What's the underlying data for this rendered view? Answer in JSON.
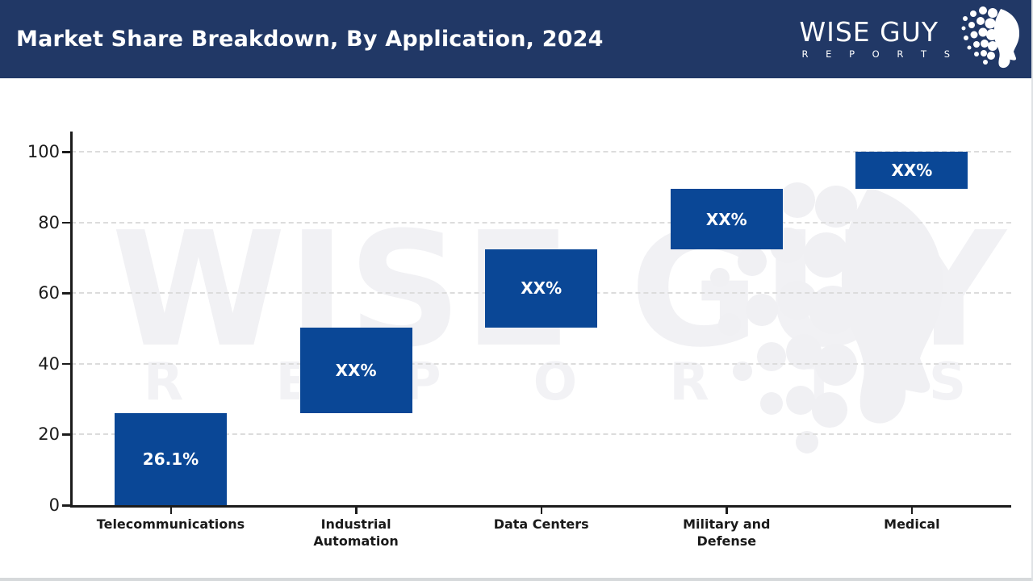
{
  "header": {
    "title": "Market Share Breakdown, By Application, 2024",
    "logo": {
      "line1": "WISE GUY",
      "line2": "R E P O R T S"
    }
  },
  "watermark": {
    "line1": "WISE GUY",
    "line2": "R E P O R T S"
  },
  "chart_data": {
    "type": "bar",
    "subtype": "waterfall",
    "title": "Market Share Breakdown, By Application, 2024",
    "categories": [
      "Telecommunications",
      "Industrial Automation",
      "Data Centers",
      "Military and Defense",
      "Medical"
    ],
    "category_label_lines": [
      [
        "Telecommunications"
      ],
      [
        "Industrial",
        "Automation"
      ],
      [
        "Data Centers"
      ],
      [
        "Military and",
        "Defense"
      ],
      [
        "Medical"
      ]
    ],
    "segments": [
      {
        "category": "Telecommunications",
        "start": 0,
        "end": 26.1,
        "label": "26.1%"
      },
      {
        "category": "Industrial Automation",
        "start": 26.1,
        "end": 50.3,
        "label": "XX%"
      },
      {
        "category": "Data Centers",
        "start": 50.3,
        "end": 72.3,
        "label": "XX%"
      },
      {
        "category": "Military and Defense",
        "start": 72.3,
        "end": 89.5,
        "label": "XX%"
      },
      {
        "category": "Medical",
        "start": 89.5,
        "end": 100,
        "label": "XX%"
      }
    ],
    "yticks": [
      0,
      20,
      40,
      60,
      80,
      100
    ],
    "ylim": [
      0,
      105
    ],
    "xlabel": "",
    "ylabel": "",
    "grid": "horizontal-dashed",
    "legend": "none",
    "bar_color": "#0a4796",
    "bar_label_color": "#ffffff"
  },
  "colors": {
    "header_bg": "#213866",
    "accent_blue": "#0a4796",
    "grid": "#dcdcdc",
    "watermark": "#f1f1f4",
    "footer_strip": "#d6d9db"
  }
}
